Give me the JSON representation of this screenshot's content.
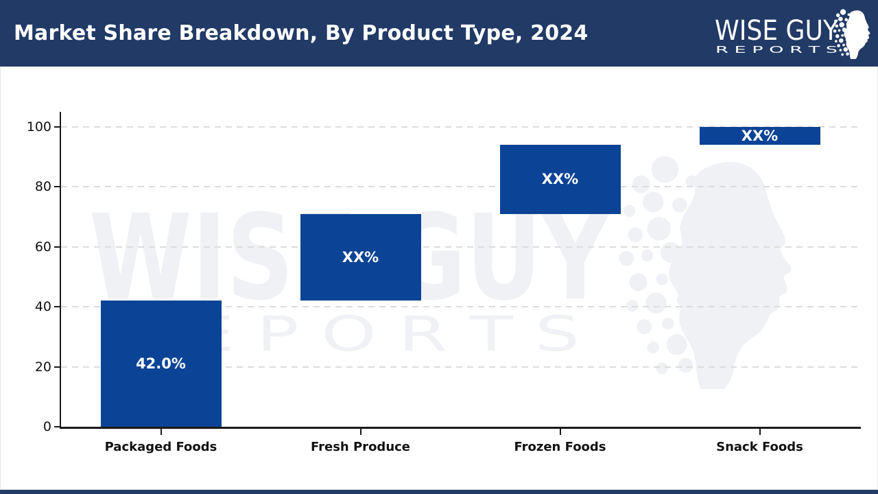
{
  "header": {
    "title": "Market Share Breakdown, By Product Type, 2024",
    "logo": {
      "line1": "WISE GUY",
      "line2": "R E P O R T S"
    }
  },
  "watermark": {
    "line1": "WISE GUY",
    "line2": "R E P O R T S"
  },
  "colors": {
    "header_bg": "#213a66",
    "bar": "#0b4396",
    "bar_label": "#ffffff",
    "axis": "#1a1a1a",
    "grid": "#dcdcdc",
    "watermark": "#f0f1f4",
    "title_text": "#ffffff",
    "tick_text": "#111111"
  },
  "chart_data": {
    "type": "bar",
    "subtype": "waterfall",
    "title": "Market Share Breakdown, By Product Type, 2024",
    "xlabel": "",
    "ylabel": "",
    "categories": [
      "Packaged Foods",
      "Fresh Produce",
      "Frozen Foods",
      "Snack Foods"
    ],
    "segments": [
      {
        "category": "Packaged Foods",
        "start": 0,
        "end": 42,
        "label": "42.0%"
      },
      {
        "category": "Fresh Produce",
        "start": 42,
        "end": 71,
        "label": "XX%"
      },
      {
        "category": "Frozen Foods",
        "start": 71,
        "end": 94,
        "label": "XX%"
      },
      {
        "category": "Snack Foods",
        "start": 94,
        "end": 100,
        "label": "XX%"
      }
    ],
    "y_ticks": [
      0,
      20,
      40,
      60,
      80,
      100
    ],
    "ylim": [
      0,
      105
    ],
    "grid": true,
    "grid_style": "dashed",
    "legend": false
  }
}
